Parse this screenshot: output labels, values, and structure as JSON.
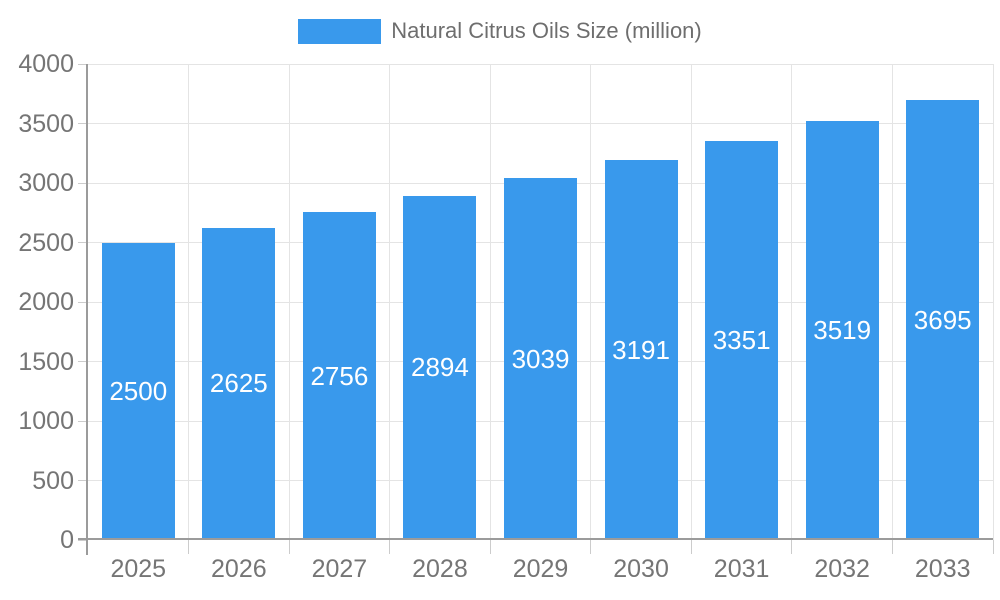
{
  "chart_data": {
    "type": "bar",
    "title": "Natural Citrus Oils Size (million)",
    "categories": [
      "2025",
      "2026",
      "2027",
      "2028",
      "2029",
      "2030",
      "2031",
      "2032",
      "2033"
    ],
    "series": [
      {
        "name": "Natural Citrus Oils Size (million)",
        "values": [
          2500,
          2625,
          2756,
          2894,
          3039,
          3191,
          3351,
          3519,
          3695
        ]
      }
    ],
    "xlabel": "",
    "ylabel": "",
    "ylim": [
      0,
      4000
    ],
    "yticks": [
      0,
      500,
      1000,
      1500,
      2000,
      2500,
      3000,
      3500,
      4000
    ],
    "grid": true,
    "legend_position": "top-center",
    "bar_value_labels_visible": true
  },
  "colors": {
    "bar": "#3999ec",
    "bar_label": "#ffffff",
    "axis": "#9b9b9b",
    "gridline": "#e4e4e4",
    "tick": "#cccccc",
    "text": "#757575",
    "background": "#ffffff"
  }
}
